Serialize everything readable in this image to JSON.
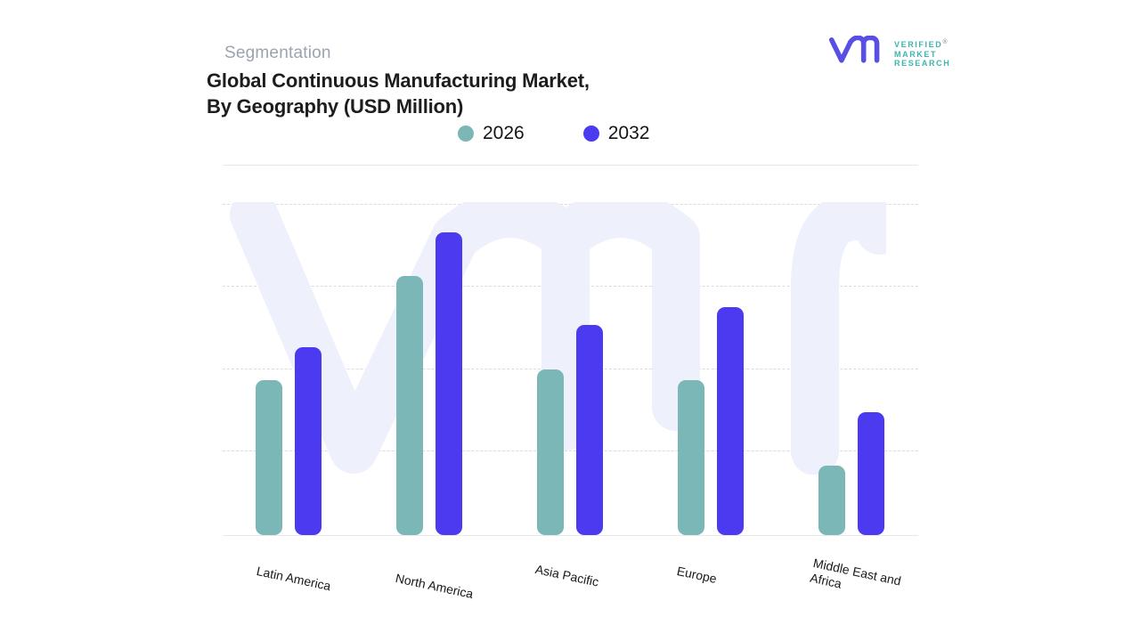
{
  "header": {
    "eyebrow": "Segmentation",
    "title_line1": "Global Continuous Manufacturing Market,",
    "title_line2": "By Geography (USD Million)"
  },
  "brand": {
    "glyph": "vmr-monogram",
    "lines": [
      "VERIFIED",
      "MARKET",
      "RESEARCH"
    ],
    "registered": "®",
    "glyph_color": "#5a4fe4",
    "text_color": "#3db4ac"
  },
  "legend": {
    "items": [
      {
        "label": "2026",
        "color": "#7ab7b6"
      },
      {
        "label": "2032",
        "color": "#4b3af0"
      }
    ]
  },
  "chart_data": {
    "type": "bar",
    "title": "Global Continuous Manufacturing Market, By Geography (USD Million)",
    "categories": [
      "Latin America",
      "North America",
      "Asia Pacific",
      "Europe",
      "Middle East and Africa"
    ],
    "series": [
      {
        "name": "2026",
        "color": "#7ab7b6",
        "values": [
          41.8,
          69.8,
          44.6,
          41.8,
          18.8
        ]
      },
      {
        "name": "2032",
        "color": "#4b3af0",
        "values": [
          50.7,
          81.5,
          56.6,
          61.3,
          33.2
        ]
      }
    ],
    "value_units": "relative bar height, percent of plot area (y-axis has no tick labels in source)",
    "xlabel": "",
    "ylabel": "",
    "ylim": [
      0,
      100
    ],
    "grid": "horizontal dashed lines, no tick labels",
    "legend_position": "top-center"
  },
  "watermark": {
    "name": "vmr-logo-watermark",
    "color": "#eef0fb"
  },
  "colors": {
    "background": "#ffffff",
    "title": "#1d1d1f",
    "eyebrow": "#9aa3ae",
    "axis_line": "#e7e8ec",
    "gridline": "#d9dbe0",
    "category_label": "#17181c"
  }
}
